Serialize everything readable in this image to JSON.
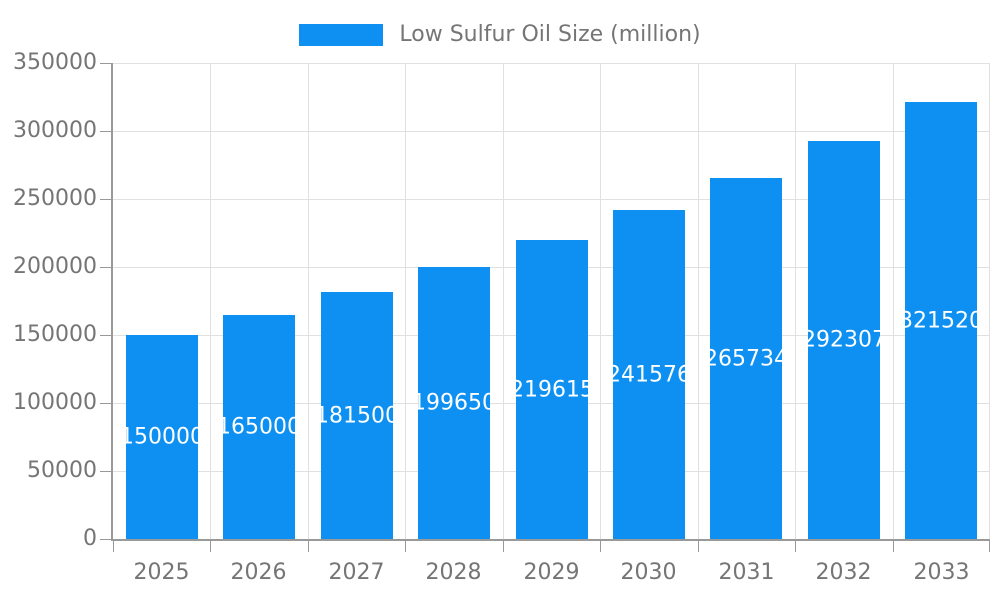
{
  "chart_data": {
    "type": "bar",
    "title": "Low Sulfur Oil Size (million)",
    "legend": [
      "Low Sulfur Oil Size (million)"
    ],
    "legend_position": "top",
    "categories": [
      "2025",
      "2026",
      "2027",
      "2028",
      "2029",
      "2030",
      "2031",
      "2032",
      "2033"
    ],
    "series": [
      {
        "name": "Low Sulfur Oil Size (million)",
        "values": [
          150000,
          165000,
          181500,
          199650,
          219615,
          241576,
          265734,
          292307,
          321520
        ]
      }
    ],
    "bar_value_labels": [
      "150000",
      "165000",
      "181500",
      "199650",
      "219615",
      "241576",
      "265734",
      "292307",
      "321520"
    ],
    "xlabel": "",
    "ylabel": "",
    "ylim": [
      0,
      350000
    ],
    "y_ticks": [
      0,
      50000,
      100000,
      150000,
      200000,
      250000,
      300000,
      350000
    ],
    "y_tick_labels": [
      "0",
      "50000",
      "100000",
      "150000",
      "200000",
      "250000",
      "300000",
      "350000"
    ],
    "grid": true,
    "colors": {
      "bar": "#0d90f2",
      "bar_value_label": "#ffffff",
      "grid_line": "#e0e0e0",
      "axis_line": "#999999",
      "tick_label": "#757575",
      "legend_text": "#757575",
      "background": "#ffffff"
    }
  }
}
